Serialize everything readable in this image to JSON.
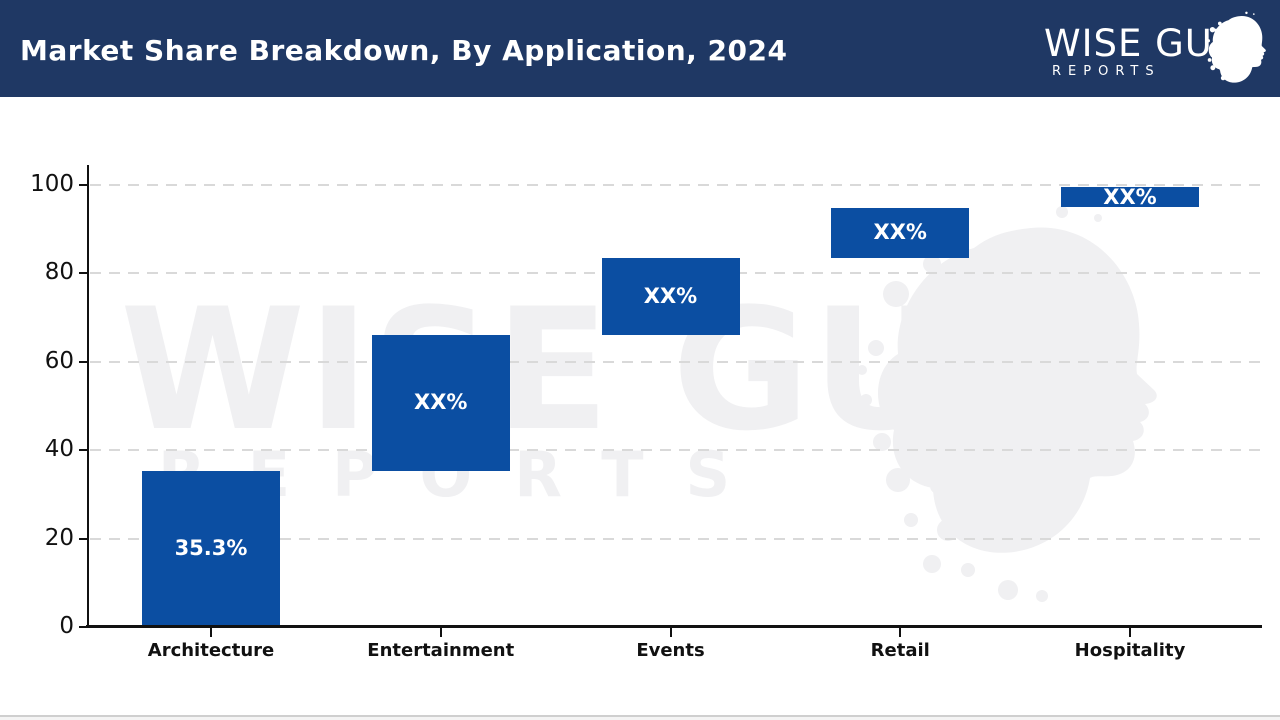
{
  "header": {
    "title": "Market Share Breakdown, By Application, 2024",
    "logo": {
      "line1": "WISE GUY",
      "line2": "REPORTS"
    }
  },
  "watermark": {
    "line1": "WISE GUY",
    "line2": "REPORTS"
  },
  "chart_data": {
    "type": "bar",
    "subtype": "waterfall",
    "title": "Market Share Breakdown, By Application, 2024",
    "categories": [
      "Architecture",
      "Entertainment",
      "Events",
      "Retail",
      "Hospitality"
    ],
    "segments": [
      {
        "category": "Architecture",
        "start": 0,
        "end": 35.3,
        "value": 35.3,
        "label": "35.3%"
      },
      {
        "category": "Entertainment",
        "start": 35.3,
        "end": 66.0,
        "value": 30.7,
        "label": "XX%"
      },
      {
        "category": "Events",
        "start": 66.0,
        "end": 83.5,
        "value": 17.5,
        "label": "XX%"
      },
      {
        "category": "Retail",
        "start": 83.5,
        "end": 94.8,
        "value": 11.3,
        "label": "XX%"
      },
      {
        "category": "Hospitality",
        "start": 94.8,
        "end": 99.4,
        "value": 4.6,
        "label": "XX%"
      }
    ],
    "y_ticks": [
      0,
      20,
      40,
      60,
      80,
      100
    ],
    "ylim": [
      0,
      104.5
    ],
    "xlabel": "",
    "ylabel": "",
    "grid": "horizontal-dashed",
    "legend": "none"
  },
  "colors": {
    "header_bg": "#1f3864",
    "bar": "#0b4ea2",
    "bar_label": "#ffffff",
    "grid": "#d9d9d9",
    "axis": "#111111",
    "watermark": "#f0f0f2"
  }
}
